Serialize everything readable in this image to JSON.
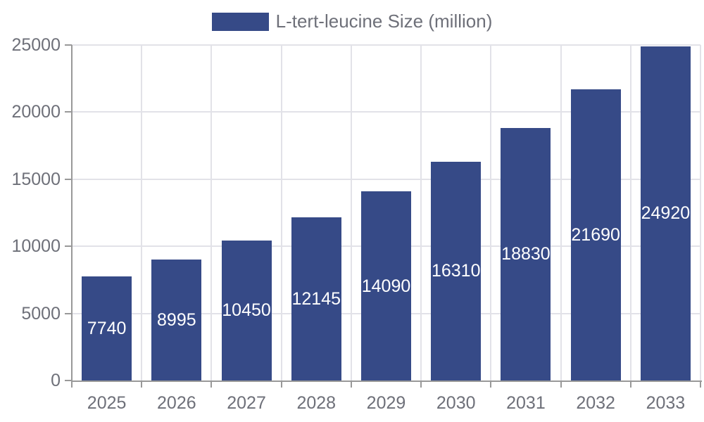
{
  "legend": {
    "label": "L-tert-leucine Size (million)"
  },
  "colors": {
    "bar": "#364a87",
    "grid": "#e2e2e8",
    "axis": "#999999",
    "axis_label": "#6e7079",
    "legend_text": "#6e7079",
    "bar_label": "#ffffff"
  },
  "chart_data": {
    "type": "bar",
    "title": "L-tert-leucine Size (million)",
    "categories": [
      "2025",
      "2026",
      "2027",
      "2028",
      "2029",
      "2030",
      "2031",
      "2032",
      "2033"
    ],
    "series": [
      {
        "name": "L-tert-leucine Size (million)",
        "values": [
          7740,
          8995,
          10450,
          12145,
          14090,
          16310,
          18830,
          21690,
          24920
        ]
      }
    ],
    "xlabel": "",
    "ylabel": "",
    "ylim": [
      0,
      25000
    ],
    "yticks": [
      0,
      5000,
      10000,
      15000,
      20000,
      25000
    ],
    "grid": true,
    "legend_position": "top-center",
    "bar_label_position": "inside-center"
  }
}
